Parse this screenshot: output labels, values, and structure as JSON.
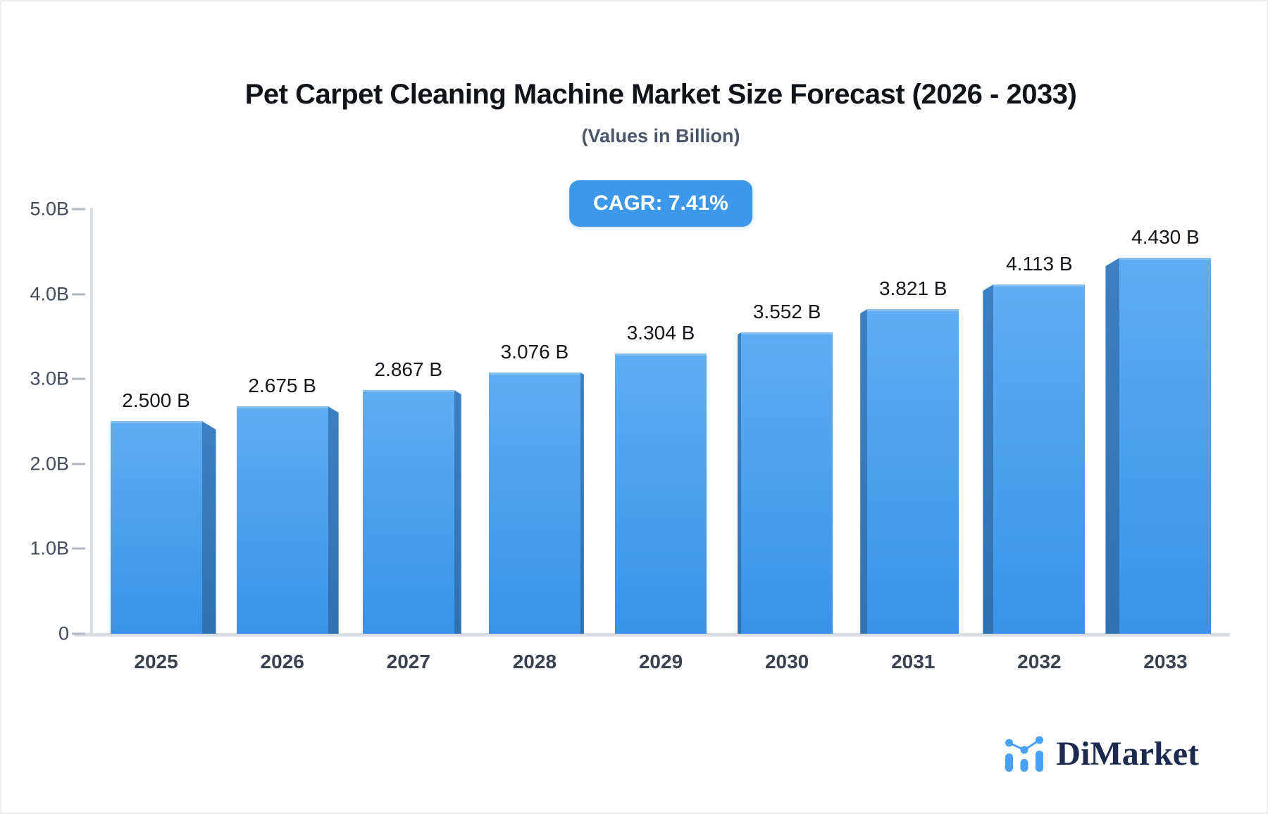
{
  "header": {
    "title": "Pet Carpet Cleaning Machine Market Size Forecast (2026 - 2033)",
    "subtitle": "(Values in Billion)"
  },
  "badge": {
    "label": "CAGR: 7.41%",
    "bg_color": "#3d98e9"
  },
  "chart_data": {
    "type": "bar",
    "title": "Pet Carpet Cleaning Machine Market Size Forecast (2026 - 2033)",
    "subtitle": "(Values in Billion)",
    "categories": [
      "2025",
      "2026",
      "2027",
      "2028",
      "2029",
      "2030",
      "2031",
      "2032",
      "2033"
    ],
    "values": [
      2.5,
      2.675,
      2.867,
      3.076,
      3.304,
      3.552,
      3.821,
      4.113,
      4.43
    ],
    "value_labels": [
      "2.500 B",
      "2.675 B",
      "2.867 B",
      "3.076 B",
      "3.304 B",
      "3.552 B",
      "3.821 B",
      "4.113 B",
      "4.430 B"
    ],
    "annotations": [
      "CAGR: 7.41%"
    ],
    "xlabel": "",
    "ylabel": "",
    "ylim": [
      0,
      5
    ],
    "y_tick_labels": [
      "0",
      "1.0B",
      "2.0B",
      "3.0B",
      "4.0B",
      "5.0B"
    ],
    "grid": false,
    "legend": "none",
    "bar_style": "3d-perspective",
    "colors": {
      "bar_front_top": "#5fadf1",
      "bar_front_bottom": "#3a92e8",
      "bar_side": "#2e72b2",
      "bar_side_light": "#3b80c2",
      "bar_top_highlight": "#84bef3",
      "axis": "#d9dce1",
      "badge": "#3d98e9"
    }
  },
  "footer": {
    "brand": "DiMarket",
    "logo_icon": "bar-chart-icon",
    "brand_color": "#1c2b4d",
    "icon_color": "#4aa0f2"
  }
}
